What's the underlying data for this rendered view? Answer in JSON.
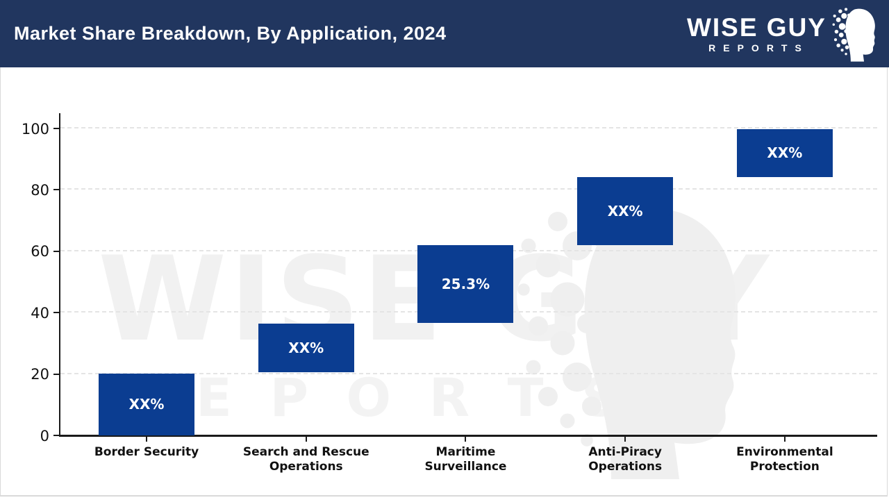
{
  "header": {
    "title": "Market Share Breakdown, By Application, 2024",
    "logo": {
      "brand": "WISE GUY",
      "sub": "REPORTS"
    }
  },
  "watermark": {
    "brand": "WISE GUY",
    "sub": "REPORTS"
  },
  "chart_data": {
    "type": "bar",
    "variant": "waterfall-floating-bars",
    "title": "Market Share Breakdown, By Application, 2024",
    "categories": [
      [
        "Border Security"
      ],
      [
        "Search and Rescue",
        "Operations"
      ],
      [
        "Maritime",
        "Surveillance"
      ],
      [
        "Anti-Piracy",
        "Operations"
      ],
      [
        "Environmental",
        "Protection"
      ]
    ],
    "segments": [
      {
        "label": "XX%",
        "start": 0,
        "end": 20.2
      },
      {
        "label": "XX%",
        "start": 20.5,
        "end": 36.4
      },
      {
        "label": "25.3%",
        "start": 36.6,
        "end": 61.9
      },
      {
        "label": "XX%",
        "start": 61.9,
        "end": 84.1
      },
      {
        "label": "XX%",
        "start": 84.2,
        "end": 99.9
      }
    ],
    "ytick_labels": [
      "0",
      "20",
      "40",
      "60",
      "80",
      "100"
    ],
    "yticks": [
      0,
      20,
      40,
      60,
      80,
      100
    ],
    "ylim": [
      0,
      105
    ],
    "grid": "horizontal-dashed",
    "legend": "none",
    "bar_color": "#0b3d91",
    "value_label_color": "#ffffff",
    "header_color": "#21365f"
  }
}
